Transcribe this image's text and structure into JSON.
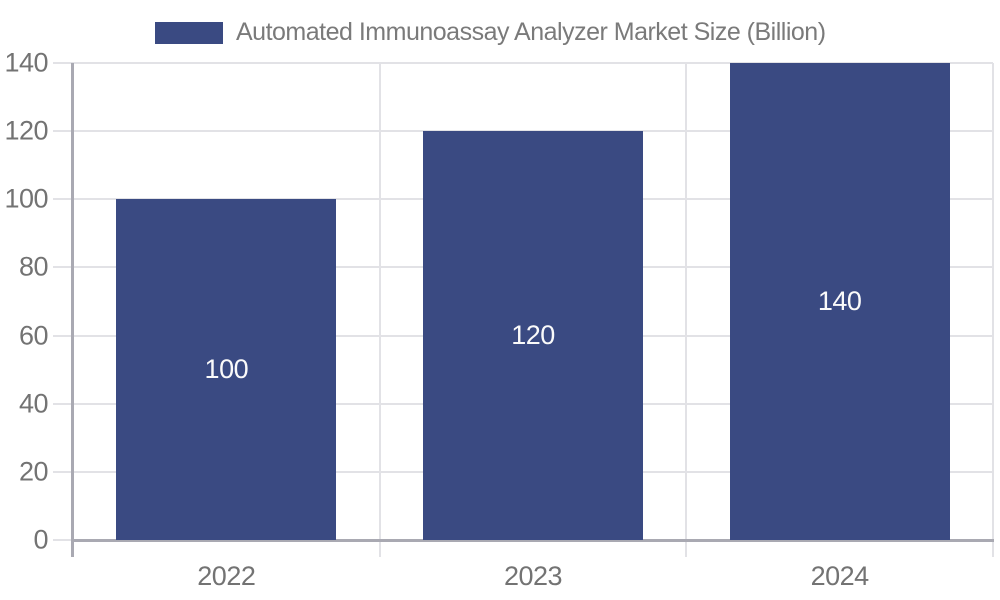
{
  "chart_data": {
    "type": "bar",
    "title": "Automated Immunoassay Analyzer Market Size (Billion)",
    "categories": [
      "2022",
      "2023",
      "2024"
    ],
    "values": [
      100,
      120,
      140
    ],
    "bar_labels": [
      "100",
      "120",
      "140"
    ],
    "ylim": [
      0,
      140
    ],
    "ytick_step": 20,
    "yticks": [
      0,
      20,
      40,
      60,
      80,
      100,
      120,
      140
    ],
    "xlabel": "",
    "ylabel": "",
    "grid": true,
    "legend_position": "top",
    "colors": {
      "bar": "#3A4A82",
      "gridline": "#E2E2E6",
      "spine": "#A9A9B2",
      "tick_label": "#737373",
      "legend_text": "#7A7A7A",
      "bar_label": "#FAFAFA",
      "background": "#FFFFFF"
    }
  }
}
